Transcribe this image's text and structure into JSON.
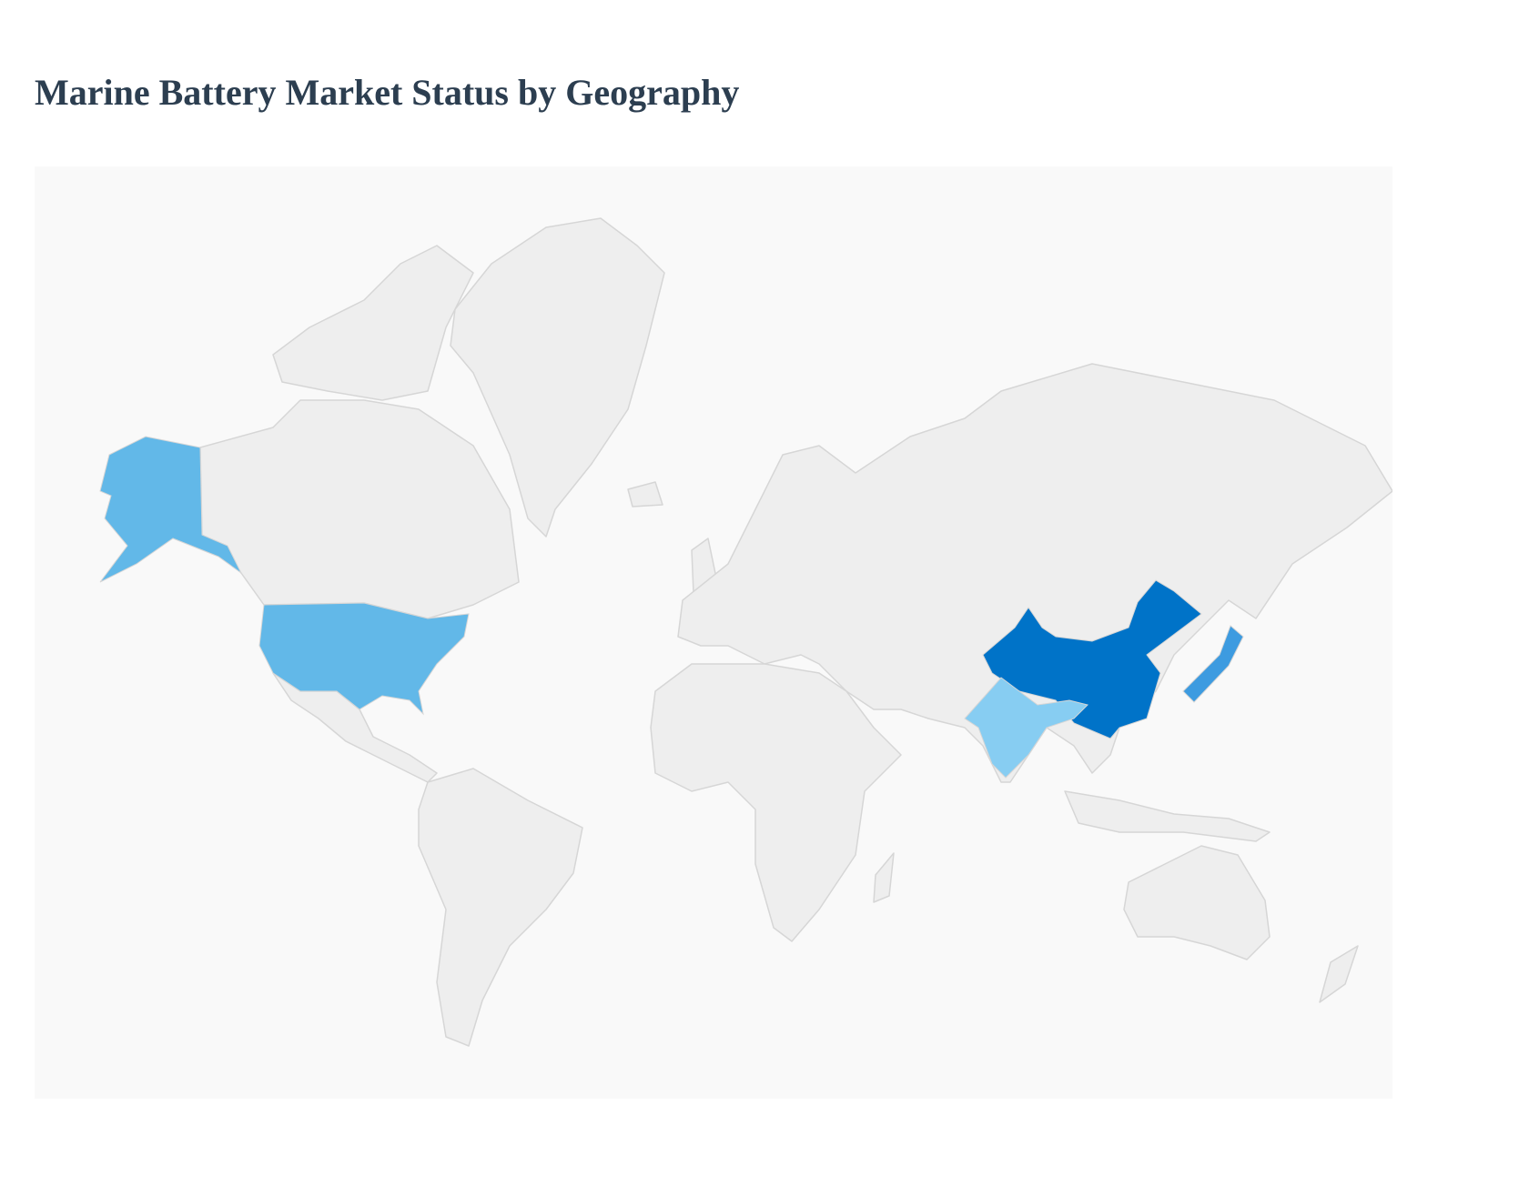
{
  "title": "Marine Battery Market Status by Geography",
  "map": {
    "type": "choropleth",
    "projection": "mercator",
    "background_color": "#f9f9f9",
    "default_land_color": "#eeeeee",
    "border_color": "#d6d6d6",
    "legend": "none",
    "highlighted_regions": [
      {
        "region": "China",
        "color": "#0073c8"
      },
      {
        "region": "Japan",
        "color": "#3d9be0"
      },
      {
        "region": "United States",
        "color": "#62b8e8"
      },
      {
        "region": "India",
        "color": "#87cdf2"
      }
    ]
  }
}
